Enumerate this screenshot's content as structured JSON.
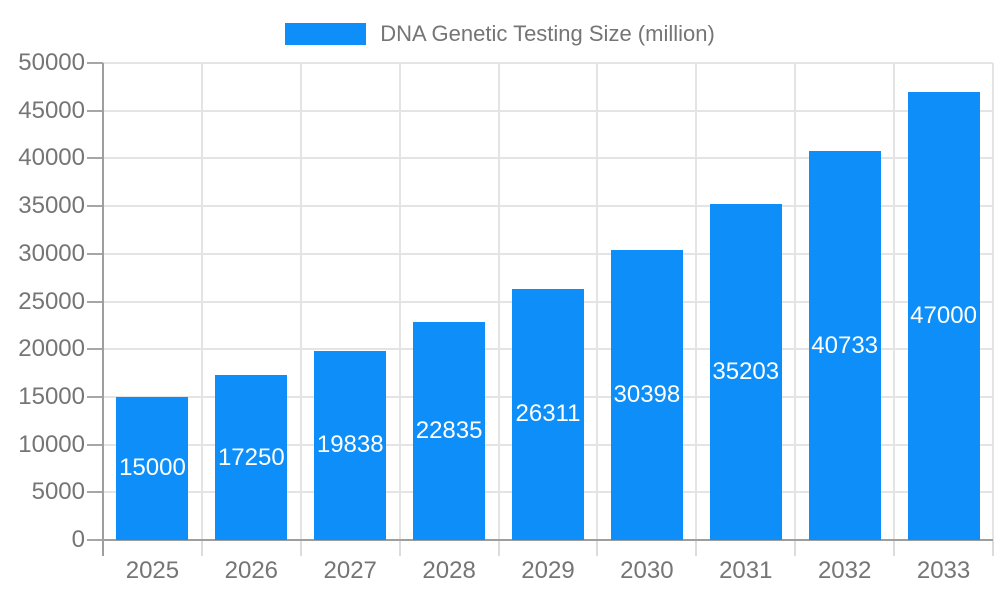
{
  "legend": {
    "label": "DNA Genetic Testing Size (million)"
  },
  "chart_data": {
    "type": "bar",
    "title": "DNA Genetic Testing Size (million)",
    "legend_position": "top",
    "categories": [
      "2025",
      "2026",
      "2027",
      "2028",
      "2029",
      "2030",
      "2031",
      "2032",
      "2033"
    ],
    "values": [
      15000,
      17250,
      19838,
      22835,
      26311,
      30398,
      35203,
      40733,
      47000
    ],
    "xlabel": "",
    "ylabel": "",
    "ylim": [
      0,
      50000
    ],
    "ytick_step": 5000,
    "ytick_labels": [
      "0",
      "5000",
      "10000",
      "15000",
      "20000",
      "25000",
      "30000",
      "35000",
      "40000",
      "45000",
      "50000"
    ],
    "grid": true,
    "bar_value_labels_visible": true
  },
  "colors": {
    "bar": "#0d8ef8",
    "grid": "#e4e4e4",
    "axis": "#9e9e9e",
    "y_tick": "#a6a6a6",
    "x_tick": "#dcdcdc",
    "axis_text": "#757575",
    "bar_label_text": "#ffffff",
    "background": "#ffffff"
  }
}
